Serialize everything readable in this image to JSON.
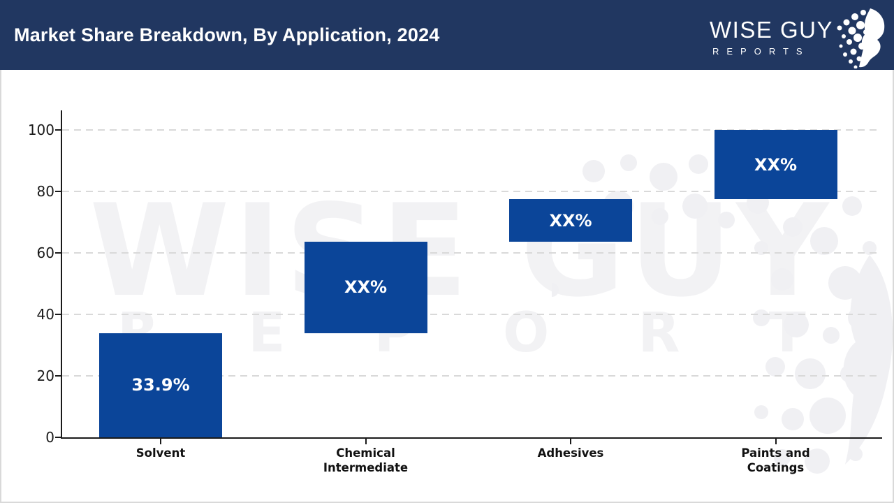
{
  "header": {
    "title": "Market Share Breakdown, By Application, 2024",
    "bg_color": "#213761",
    "logo": {
      "name": "WISE GUY",
      "sub": "REPORTS"
    }
  },
  "watermark": {
    "line1": "WISE GUY",
    "line2": "R E P O R T S"
  },
  "chart_data": {
    "type": "bar",
    "subtype": "waterfall",
    "title": "Market Share Breakdown, By Application, 2024",
    "categories": [
      "Solvent",
      "Chemical\nIntermediate",
      "Adhesives",
      "Paints and\nCoatings"
    ],
    "segments": [
      {
        "category": "Solvent",
        "start": 0,
        "end": 33.9,
        "value_label": "33.9%"
      },
      {
        "category": "Chemical Intermediate",
        "start": 33.9,
        "end": 63.7,
        "value_label": "XX%"
      },
      {
        "category": "Adhesives",
        "start": 63.7,
        "end": 77.4,
        "value_label": "XX%"
      },
      {
        "category": "Paints and Coatings",
        "start": 77.4,
        "end": 100,
        "value_label": "XX%"
      }
    ],
    "y_ticks": [
      0,
      20,
      40,
      60,
      80,
      100
    ],
    "ylim": [
      0,
      106
    ],
    "xlabel": "",
    "ylabel": "",
    "grid": "horizontal-dashed",
    "legend": "none",
    "bar_color": "#0b4599",
    "label_color": "#ffffff",
    "axis_color": "#1a1a1a",
    "gridline_color": "#d9d9d9"
  }
}
